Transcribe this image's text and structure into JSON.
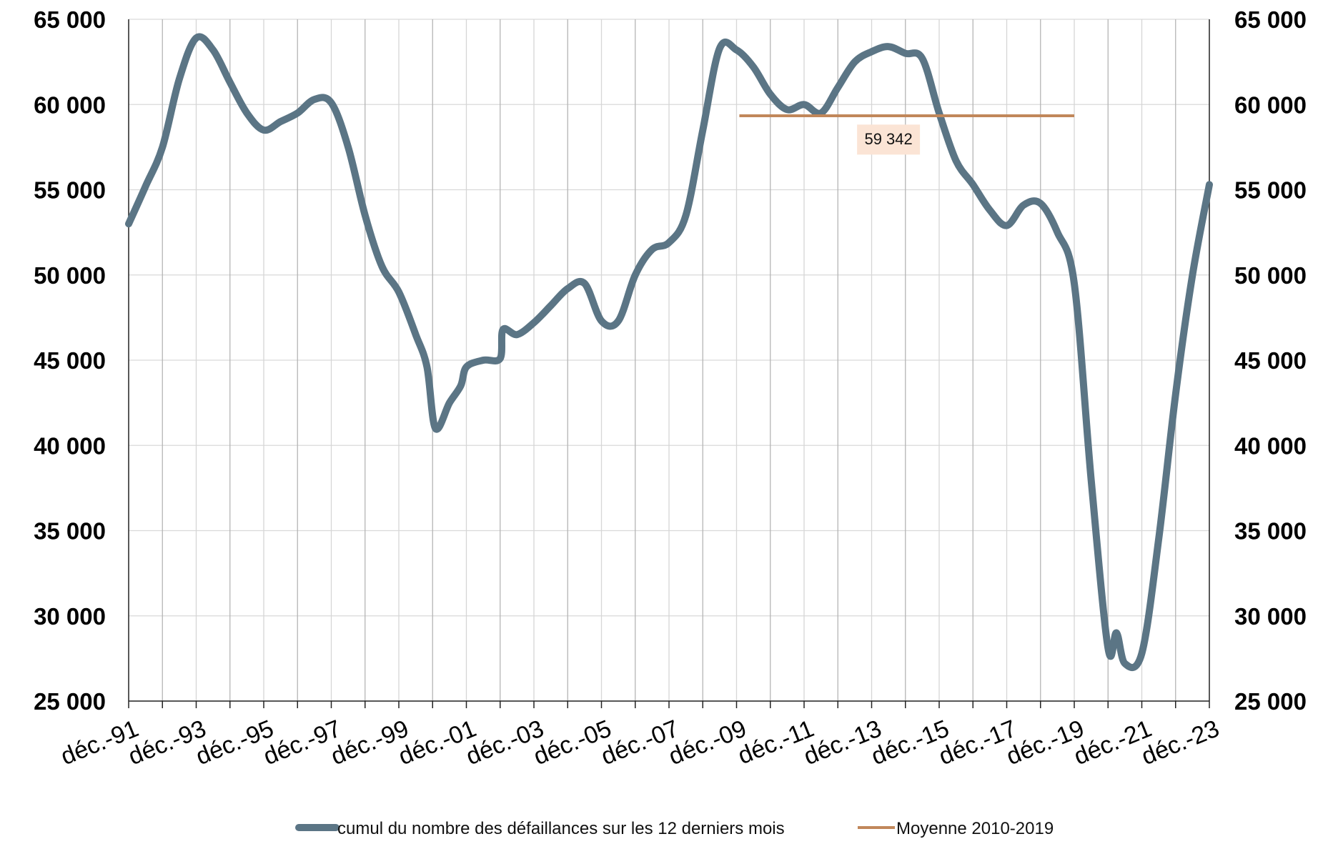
{
  "chart_data": {
    "type": "line",
    "title": "",
    "xlabel": "",
    "ylabel": "",
    "ylim": [
      25000,
      65000
    ],
    "xlim": [
      "1991-12",
      "2023-12"
    ],
    "y_ticks": [
      "25 000",
      "30 000",
      "35 000",
      "40 000",
      "45 000",
      "50 000",
      "55 000",
      "60 000",
      "65 000"
    ],
    "y_tick_values": [
      25000,
      30000,
      35000,
      40000,
      45000,
      50000,
      55000,
      60000,
      65000
    ],
    "x_tick_labels": [
      "déc.-91",
      "déc.-93",
      "déc.-95",
      "déc.-97",
      "déc.-99",
      "déc.-01",
      "déc.-03",
      "déc.-05",
      "déc.-07",
      "déc.-09",
      "déc.-11",
      "déc.-13",
      "déc.-15",
      "déc.-17",
      "déc.-19",
      "déc.-21",
      "déc.-23"
    ],
    "x_tick_dates": [
      "1991-12",
      "1993-12",
      "1995-12",
      "1997-12",
      "1999-12",
      "2001-12",
      "2003-12",
      "2005-12",
      "2007-12",
      "2009-12",
      "2011-12",
      "2013-12",
      "2015-12",
      "2017-12",
      "2019-12",
      "2021-12",
      "2023-12"
    ],
    "grid": true,
    "legend_position": "bottom",
    "series": [
      {
        "name": "cumul du nombre des défaillances sur les 12 derniers mois",
        "color": "#5b7585",
        "x": [
          "1991-12",
          "1992-06",
          "1992-12",
          "1993-06",
          "1993-12",
          "1994-06",
          "1994-12",
          "1995-06",
          "1995-12",
          "1996-06",
          "1996-12",
          "1997-06",
          "1997-12",
          "1998-06",
          "1998-12",
          "1999-06",
          "1999-12",
          "2000-06",
          "2000-10",
          "2001-01",
          "2001-06",
          "2001-10",
          "2001-12",
          "2002-06",
          "2002-12",
          "2003-01",
          "2003-06",
          "2003-12",
          "2004-06",
          "2004-12",
          "2005-06",
          "2005-12",
          "2006-06",
          "2006-12",
          "2007-06",
          "2007-12",
          "2008-06",
          "2008-12",
          "2009-06",
          "2009-12",
          "2010-06",
          "2010-12",
          "2011-06",
          "2011-12",
          "2012-06",
          "2012-12",
          "2013-06",
          "2013-12",
          "2014-06",
          "2014-12",
          "2015-06",
          "2015-12",
          "2016-06",
          "2016-12",
          "2017-06",
          "2017-12",
          "2018-06",
          "2018-12",
          "2019-06",
          "2019-12",
          "2020-06",
          "2020-12",
          "2021-03",
          "2021-06",
          "2021-12",
          "2022-06",
          "2022-12",
          "2023-06",
          "2023-12"
        ],
        "values": [
          53000,
          55200,
          57500,
          61500,
          63900,
          63200,
          61300,
          59500,
          58500,
          59000,
          59500,
          60300,
          60100,
          57500,
          53500,
          50500,
          49000,
          46500,
          44600,
          41000,
          42500,
          43500,
          44600,
          45000,
          45100,
          46800,
          46500,
          47200,
          48200,
          49200,
          49500,
          47300,
          47300,
          50000,
          51500,
          51900,
          53500,
          58500,
          63300,
          63200,
          62200,
          60600,
          59700,
          60000,
          59500,
          61000,
          62500,
          63100,
          63400,
          63000,
          62700,
          59500,
          56700,
          55300,
          53800,
          52900,
          54100,
          54200,
          52500,
          49500,
          38000,
          28100,
          29000,
          27200,
          27800,
          34500,
          43000,
          50000,
          55300
        ]
      },
      {
        "name": "Moyenne 2010-2019",
        "color": "#c1875a",
        "x": [
          "2010-01",
          "2019-12"
        ],
        "values": [
          59342,
          59342
        ]
      }
    ],
    "annotations": [
      {
        "text": "59 342",
        "x": "2014-06",
        "y": 57900
      }
    ]
  }
}
